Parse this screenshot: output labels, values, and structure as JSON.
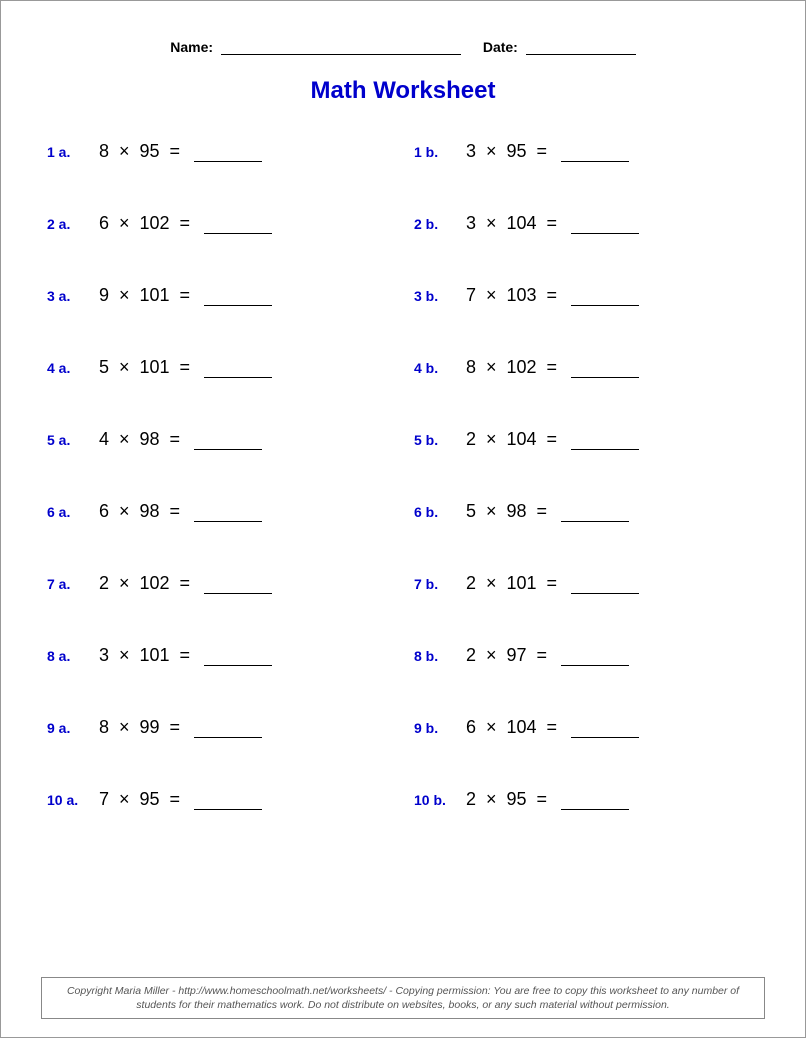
{
  "header": {
    "name_label": "Name:",
    "date_label": "Date:"
  },
  "title": "Math Worksheet",
  "label_color": "#0000cc",
  "title_color": "#0000cc",
  "text_color": "#000000",
  "border_color": "#999999",
  "background_color": "#ffffff",
  "answer_blank": "________",
  "problems": [
    {
      "label": "1 a.",
      "a": 8,
      "op": "×",
      "b": 95
    },
    {
      "label": "1 b.",
      "a": 3,
      "op": "×",
      "b": 95
    },
    {
      "label": "2 a.",
      "a": 6,
      "op": "×",
      "b": 102
    },
    {
      "label": "2 b.",
      "a": 3,
      "op": "×",
      "b": 104
    },
    {
      "label": "3 a.",
      "a": 9,
      "op": "×",
      "b": 101
    },
    {
      "label": "3 b.",
      "a": 7,
      "op": "×",
      "b": 103
    },
    {
      "label": "4 a.",
      "a": 5,
      "op": "×",
      "b": 101
    },
    {
      "label": "4 b.",
      "a": 8,
      "op": "×",
      "b": 102
    },
    {
      "label": "5 a.",
      "a": 4,
      "op": "×",
      "b": 98
    },
    {
      "label": "5 b.",
      "a": 2,
      "op": "×",
      "b": 104
    },
    {
      "label": "6 a.",
      "a": 6,
      "op": "×",
      "b": 98
    },
    {
      "label": "6 b.",
      "a": 5,
      "op": "×",
      "b": 98
    },
    {
      "label": "7 a.",
      "a": 2,
      "op": "×",
      "b": 102
    },
    {
      "label": "7 b.",
      "a": 2,
      "op": "×",
      "b": 101
    },
    {
      "label": "8 a.",
      "a": 3,
      "op": "×",
      "b": 101
    },
    {
      "label": "8 b.",
      "a": 2,
      "op": "×",
      "b": 97
    },
    {
      "label": "9 a.",
      "a": 8,
      "op": "×",
      "b": 99
    },
    {
      "label": "9 b.",
      "a": 6,
      "op": "×",
      "b": 104
    },
    {
      "label": "10 a.",
      "a": 7,
      "op": "×",
      "b": 95
    },
    {
      "label": "10 b.",
      "a": 2,
      "op": "×",
      "b": 95
    }
  ],
  "footer": "Copyright Maria Miller - http://www.homeschoolmath.net/worksheets/ - Copying permission: You are free to copy this worksheet to any number of students for their mathematics work. Do not distribute on websites, books, or any such material without permission."
}
